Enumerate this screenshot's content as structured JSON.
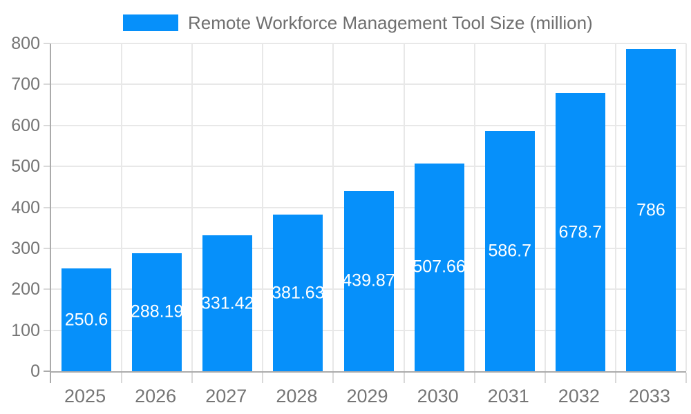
{
  "legend": {
    "label": "Remote Workforce Management Tool Size (million)"
  },
  "chart_data": {
    "type": "bar",
    "title": "Remote Workforce Management Tool Size (million)",
    "categories": [
      "2025",
      "2026",
      "2027",
      "2028",
      "2029",
      "2030",
      "2031",
      "2032",
      "2033"
    ],
    "values": [
      250.6,
      288.19,
      331.42,
      381.63,
      439.87,
      507.66,
      586.7,
      678.7,
      786
    ],
    "value_labels": [
      "250.6",
      "288.19",
      "331.42",
      "381.63",
      "439.87",
      "507.66",
      "586.7",
      "678.7",
      "786"
    ],
    "xlabel": "",
    "ylabel": "",
    "ylim": [
      0,
      800
    ],
    "ytick_step": 100,
    "ytick_labels": [
      "0",
      "100",
      "200",
      "300",
      "400",
      "500",
      "600",
      "700",
      "800"
    ],
    "grid": true,
    "legend_position": "top"
  },
  "colors": {
    "bar_fill": "#0690fa",
    "bar_value_text": "#ffffff",
    "axis_text": "#757575",
    "legend_text": "#6f6f6f",
    "gridline": "#e8e8e8",
    "tick": "#d9d9d9",
    "axis_line": "#ababab",
    "background": "#ffffff"
  }
}
